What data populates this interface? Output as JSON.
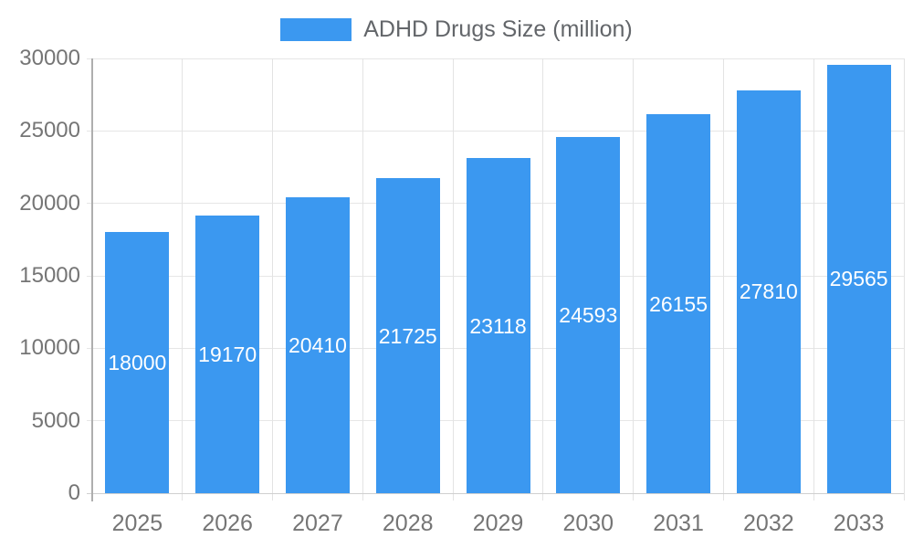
{
  "chart_data": {
    "type": "bar",
    "title": "ADHD Drugs Size (million)",
    "legend_position": "top",
    "legend_entries": [
      "ADHD Drugs Size (million)"
    ],
    "categories": [
      "2025",
      "2026",
      "2027",
      "2028",
      "2029",
      "2030",
      "2031",
      "2032",
      "2033"
    ],
    "series": [
      {
        "name": "ADHD Drugs Size (million)",
        "values": [
          18000,
          19170,
          20410,
          21725,
          23118,
          24593,
          26155,
          27810,
          29565
        ]
      }
    ],
    "value_labels_shown": true,
    "xlabel": "",
    "ylabel": "",
    "ylim": [
      0,
      30000
    ],
    "yticks": [
      0,
      5000,
      10000,
      15000,
      20000,
      25000,
      30000
    ],
    "grid": true,
    "colors": {
      "bar": "#3b98f0",
      "value_label": "#ffffff",
      "axis_text": "#757575",
      "legend_text": "#63666a",
      "gridline": "#e6e6e6",
      "category_line": "#e3e3e3",
      "y_axis_line": "#aeaeae",
      "x_axis_line": "#cfcfcf"
    }
  }
}
